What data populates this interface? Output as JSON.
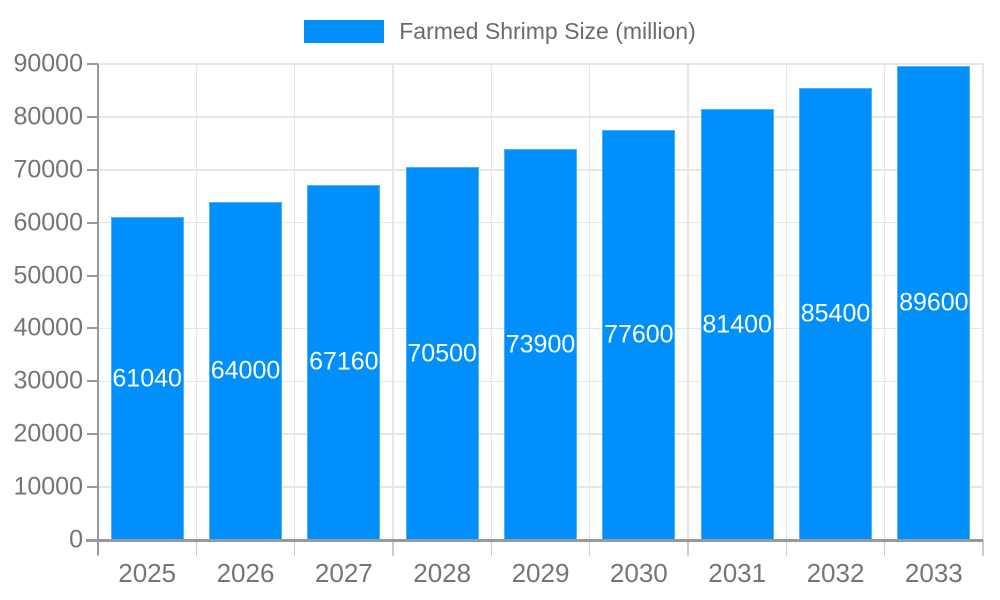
{
  "chart_data": {
    "type": "bar",
    "legend": "Farmed Shrimp Size (million)",
    "categories": [
      "2025",
      "2026",
      "2027",
      "2028",
      "2029",
      "2030",
      "2031",
      "2032",
      "2033"
    ],
    "values": [
      61040,
      64000,
      67160,
      70500,
      73900,
      77600,
      81400,
      85400,
      89600
    ],
    "value_labels": [
      "61040",
      "64000",
      "67160",
      "70500",
      "73900",
      "77600",
      "81400",
      "85400",
      "89600"
    ],
    "ylim": [
      0,
      90000
    ],
    "ytick_step": 10000,
    "ytick_labels": [
      "0",
      "10000",
      "20000",
      "30000",
      "40000",
      "50000",
      "60000",
      "70000",
      "80000",
      "90000"
    ],
    "grid": "horizontal-and-vertical",
    "legend_position": "top-center",
    "colors": {
      "bar": "#008FFB",
      "grid": "#e6e6e6",
      "axis_line": "#999999",
      "x_tick": "#cccccc",
      "axis_text": "#757575",
      "legend_text": "#6b6b6b",
      "value_text": "#ffffff",
      "background": "#ffffff"
    }
  }
}
